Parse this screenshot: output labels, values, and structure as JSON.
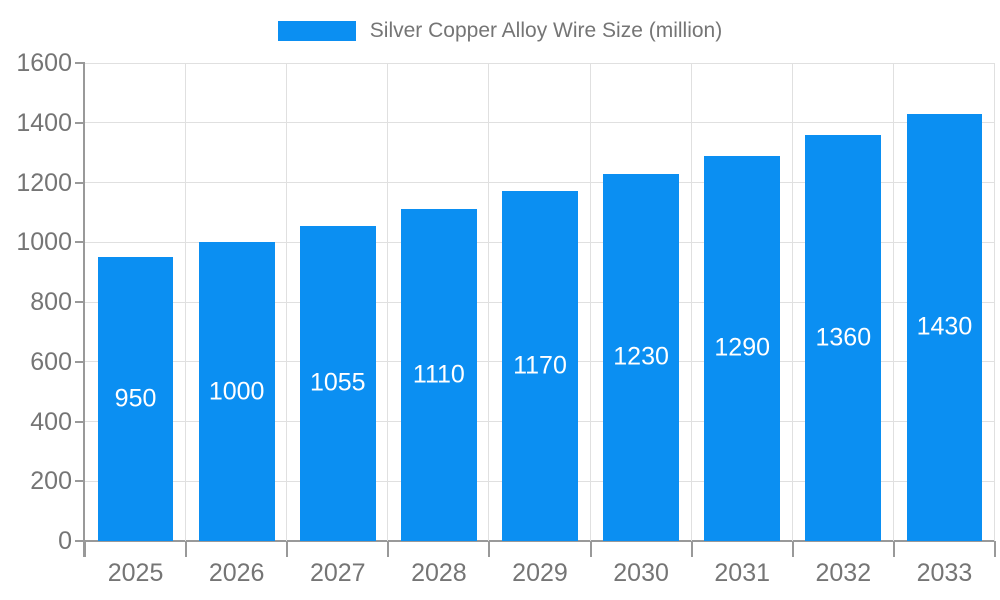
{
  "chart_data": {
    "type": "bar",
    "title": "Silver Copper Alloy Wire Size (million)",
    "categories": [
      "2025",
      "2026",
      "2027",
      "2028",
      "2029",
      "2030",
      "2031",
      "2032",
      "2033"
    ],
    "values": [
      950,
      1000,
      1055,
      1110,
      1170,
      1230,
      1290,
      1360,
      1430
    ],
    "xlabel": "",
    "ylabel": "",
    "ylim": [
      0,
      1600
    ],
    "ytick_step": 200,
    "grid": true,
    "legend_position": "top-center",
    "value_labels": "inside-center",
    "colors": {
      "bar": "#0b8ff2",
      "grid": "#e0e0e0",
      "axis": "#999999",
      "text": "#757575",
      "value_label": "#ffffff"
    }
  }
}
